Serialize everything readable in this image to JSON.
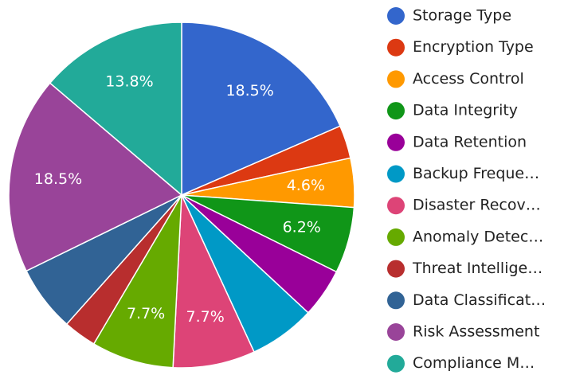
{
  "chart_data": {
    "type": "pie",
    "categories": [
      "Storage Type",
      "Encryption Type",
      "Access Control",
      "Data Integrity",
      "Data Retention",
      "Backup Freque…",
      "Disaster Recov…",
      "Anomaly Detec…",
      "Threat Intellige…",
      "Data Classificat…",
      "Risk Assessment",
      "Compliance M…"
    ],
    "values": [
      18.5,
      3.1,
      4.6,
      6.2,
      4.6,
      6.2,
      7.7,
      7.7,
      3.1,
      6.2,
      18.5,
      13.8
    ],
    "value_labels": [
      "18.5%",
      null,
      "4.6%",
      "6.2%",
      null,
      null,
      "7.7%",
      "7.7%",
      null,
      null,
      "18.5%",
      "13.8%"
    ],
    "colors": [
      "#3366cc",
      "#dc3912",
      "#ff9900",
      "#109618",
      "#990099",
      "#0099c6",
      "#dd4477",
      "#66aa00",
      "#b82e2e",
      "#316395",
      "#994499",
      "#22aa99"
    ],
    "legend": "right"
  }
}
